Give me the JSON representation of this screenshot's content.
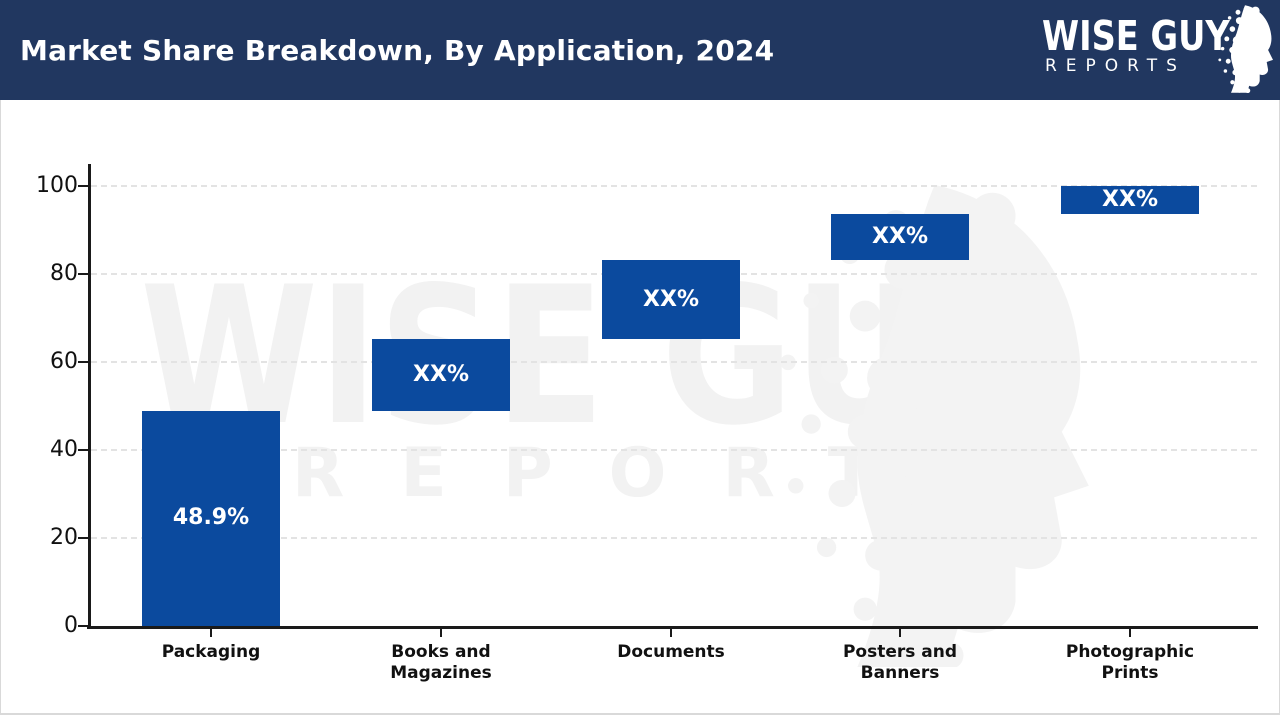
{
  "header": {
    "title": "Market Share Breakdown, By Application, 2024",
    "logo": {
      "wordmark": "WISE GUY",
      "subtext": "REPORTS",
      "face_icon": "dotted-head-profile"
    }
  },
  "watermark": {
    "wordmark": "WISE GUY",
    "subtext": "REPORTS"
  },
  "colors": {
    "header_bg": "#213760",
    "bar": "#0b4a9e",
    "bar_label": "#ffffff",
    "grid": "#e3e3e3",
    "axis": "#1a1a1a",
    "watermark": "#f2f2f2"
  },
  "chart_data": {
    "type": "bar",
    "variant": "waterfall-cumulative",
    "title": "Market Share Breakdown, By Application, 2024",
    "categories": [
      "Packaging",
      "Books and Magazines",
      "Documents",
      "Posters and Banners",
      "Photographic Prints"
    ],
    "series": [
      {
        "name": "Packaging",
        "start": 0,
        "end": 48.9,
        "value_label": "48.9%"
      },
      {
        "name": "Books and Magazines",
        "start": 48.9,
        "end": 65.2,
        "value_label": "XX%"
      },
      {
        "name": "Documents",
        "start": 65.2,
        "end": 83.2,
        "value_label": "XX%"
      },
      {
        "name": "Posters and Banners",
        "start": 83.2,
        "end": 93.6,
        "value_label": "XX%"
      },
      {
        "name": "Photographic Prints",
        "start": 93.6,
        "end": 99.9,
        "value_label": "XX%"
      }
    ],
    "y_ticks": [
      0,
      20,
      40,
      60,
      80,
      100
    ],
    "ylim": [
      0,
      105
    ],
    "xlabel": "",
    "ylabel": "",
    "grid": "horizontal-dashed",
    "legend": "none"
  }
}
